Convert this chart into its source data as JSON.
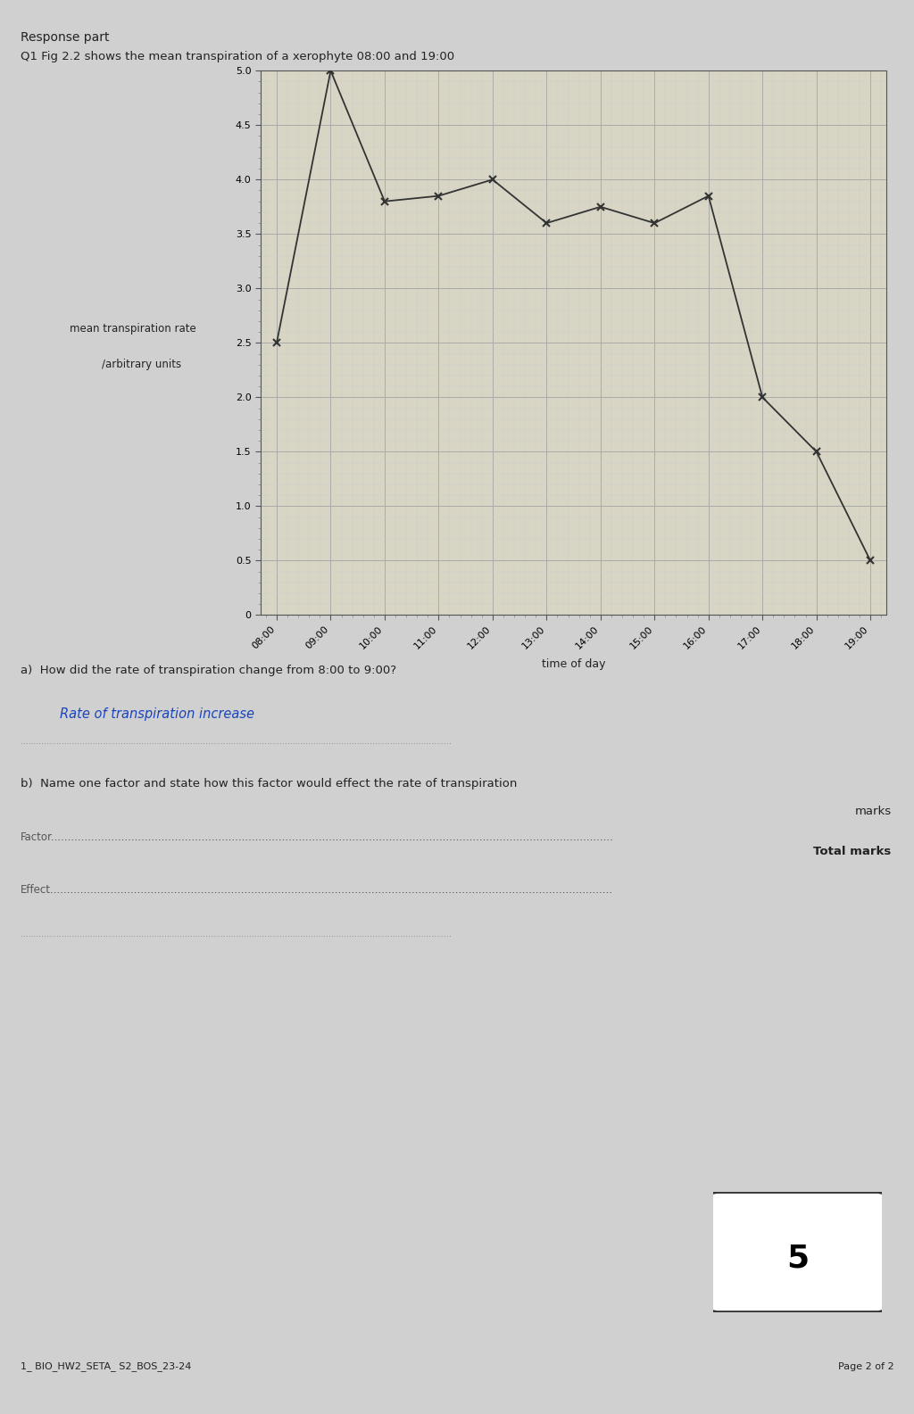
{
  "header": "Response part",
  "subtitle": "Q1 Fig 2.2 shows the mean transpiration of a xerophyte 08:00 and 19:00",
  "ylabel_line1": "mean transpiration rate",
  "ylabel_line2": "/arbitrary units",
  "xlabel": "time of day",
  "x_times": [
    "08:00",
    "09:00",
    "10:00",
    "11:00",
    "12:00",
    "13:00",
    "14:00",
    "15:00",
    "16:00",
    "17:00",
    "18:00",
    "19:00"
  ],
  "y_values": [
    2.5,
    5.0,
    3.8,
    3.85,
    4.0,
    3.6,
    3.75,
    3.6,
    3.85,
    2.0,
    1.5,
    0.5
  ],
  "ylim": [
    0,
    5.0
  ],
  "ytick_vals": [
    0,
    0.5,
    1.0,
    1.5,
    2.0,
    2.5,
    3.0,
    3.5,
    4.0,
    4.5,
    5.0
  ],
  "ytick_labels": [
    "0",
    "0.5",
    "1.0",
    "1.5",
    "2.0",
    "2.5",
    "3.0",
    "3.5",
    "4.0",
    "4.5",
    "5.0"
  ],
  "line_color": "#333333",
  "marker": "x",
  "marker_size": 6,
  "marker_color": "#333333",
  "grid_major_color": "#aaaaaa",
  "grid_minor_color": "#cccccc",
  "plot_bg_color": "#d8d5c4",
  "page_bg_color": "#d0d0d0",
  "question_a": "a)  How did the rate of transpiration change from 8:00 to 9:00?",
  "answer_a_text": "Rate of transpiration increase",
  "question_b": "b)  Name one factor and state how this factor would effect the rate of transpiration",
  "label_factor": "Factor",
  "label_effect": "Effect",
  "dots": "........................................................................................................................................................................",
  "marks_label": "marks",
  "total_marks_label": "Total marks",
  "box_number": "5",
  "footer_left": "1_ BIO_HW2_SETA_ S2_BOS_23-24",
  "footer_right": "Page 2 of 2"
}
